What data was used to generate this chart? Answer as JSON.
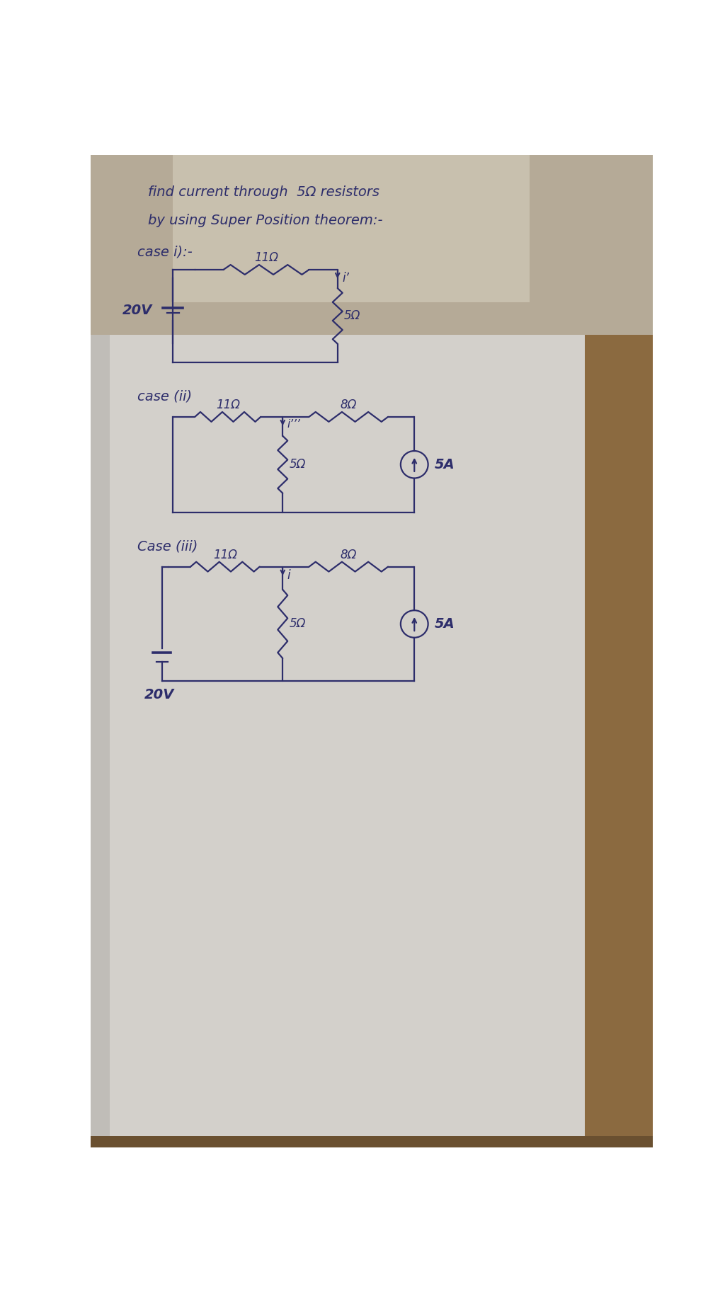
{
  "ink_color": "#2d2d6b",
  "page_color": "#d8d6d2",
  "bg_top_color": "#b0a898",
  "bg_bottom_color": "#7a6a50",
  "title_line1": "find current through  5Ω resistors",
  "title_line2": "by using Super Position theorem:-",
  "case1_label": "case i):-",
  "case2_label": "case (ii)",
  "case3_label": "Case (iii)",
  "resistor_11": "11Ω",
  "resistor_5": "5Ω",
  "resistor_8": "8Ω",
  "voltage_20": "20V",
  "current_5A": "5A",
  "i1_label": "i’",
  "i2_label": "i’’’",
  "i3_label": "i"
}
